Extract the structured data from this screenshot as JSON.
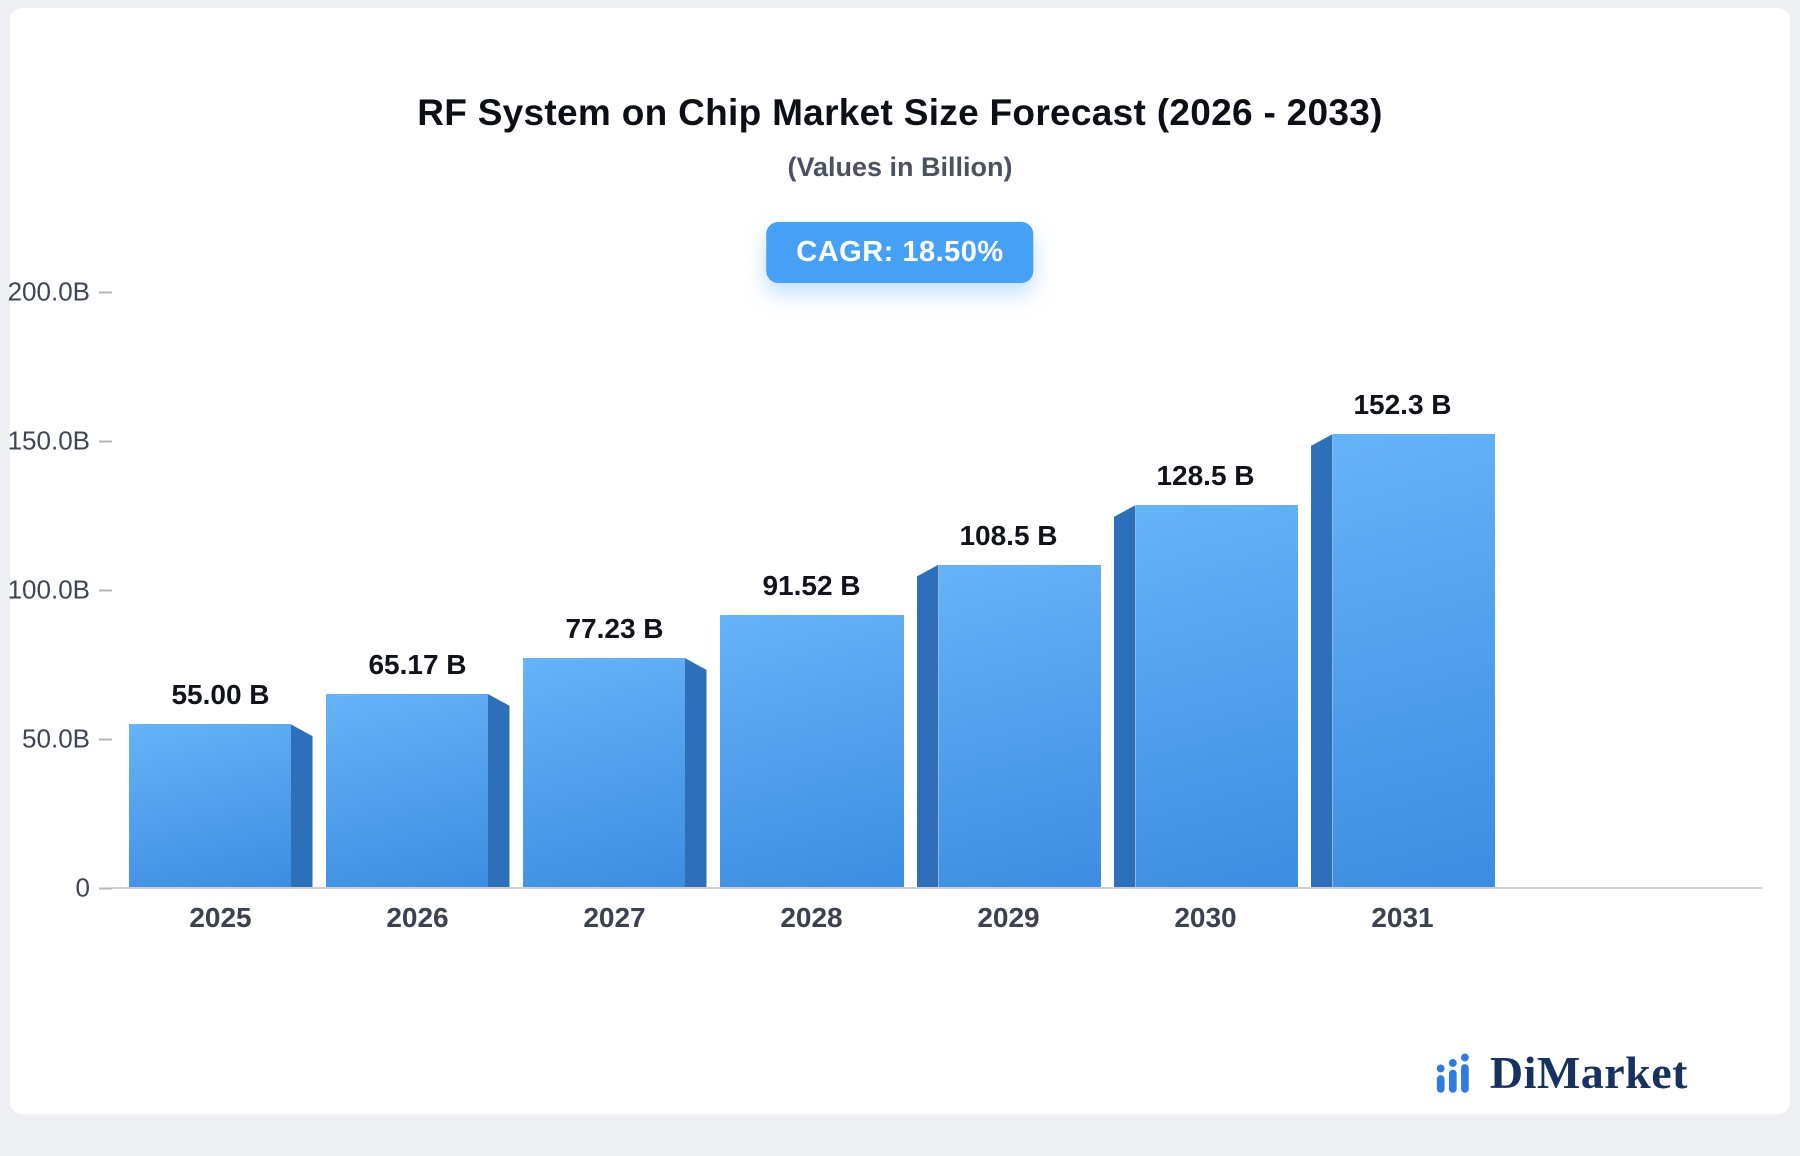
{
  "header": {
    "title": "RF System on Chip Market Size Forecast (2026 - 2033)",
    "subtitle": "(Values in Billion)",
    "badge_label": "CAGR: 18.50%"
  },
  "logo": {
    "text": "DiMarket"
  },
  "colors": {
    "badge_bg": "#46a1f6",
    "bar_top": "#66b3f8",
    "bar_bottom": "#3c8ce2",
    "bar_depth": "#2d6fb9",
    "logo_blue": "#2e7ce0",
    "logo_navy": "#16325f",
    "axis_text": "#3e4553",
    "baseline": "#cbced4"
  },
  "chart_data": {
    "type": "bar",
    "title": "RF System on Chip Market Size Forecast (2026 - 2033)",
    "subtitle": "(Values in Billion)",
    "categories": [
      "2025",
      "2026",
      "2027",
      "2028",
      "2029",
      "2030",
      "2031"
    ],
    "values": [
      55.0,
      65.17,
      77.23,
      91.52,
      108.5,
      128.5,
      152.3
    ],
    "value_labels": [
      "55.00 B",
      "65.17 B",
      "77.23 B",
      "91.52 B",
      "108.5 B",
      "128.5 B",
      "152.3 B"
    ],
    "xlabel": "",
    "ylabel": "",
    "ylim": [
      0,
      200
    ],
    "yticks": [
      {
        "label": "200.0B",
        "value": 200
      },
      {
        "label": "150.0B",
        "value": 150
      },
      {
        "label": "100.0B",
        "value": 100
      },
      {
        "label": "50.0B",
        "value": 50
      },
      {
        "label": "0",
        "value": 0
      }
    ],
    "grid": false,
    "legend": false,
    "annotation": "CAGR: 18.50%"
  }
}
